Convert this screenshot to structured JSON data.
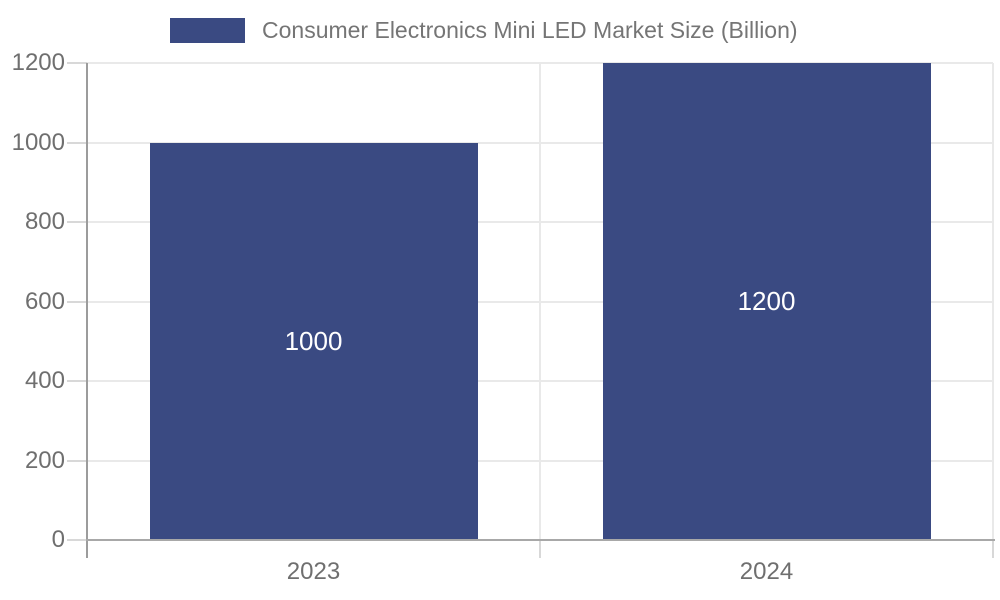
{
  "chart_data": {
    "type": "bar",
    "title": "Consumer Electronics Mini LED Market Size (Billion)",
    "legend_position": "top",
    "categories": [
      "2023",
      "2024"
    ],
    "values": [
      1000,
      1200
    ],
    "data_labels": [
      "1000",
      "1200"
    ],
    "yticks": [
      0,
      200,
      400,
      600,
      800,
      1000,
      1200
    ],
    "ylim": [
      0,
      1200
    ],
    "xlabel": "",
    "ylabel": "",
    "grid": true,
    "colors": {
      "bar": "#3A4A82",
      "value_label": "#FFFFFF",
      "axis_text": "#6F6F6F",
      "grid": "#E9E9E9",
      "tick": "#D8D8D8",
      "axis_line": "#9C9C9C"
    }
  }
}
